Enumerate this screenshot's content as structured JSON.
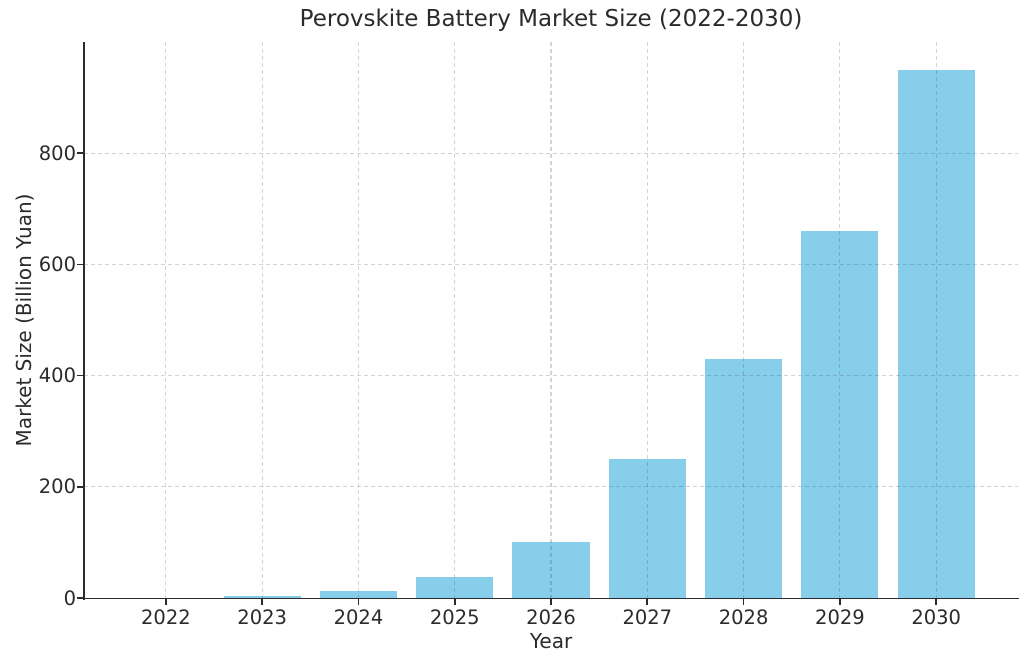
{
  "figure": {
    "background_color": "#ffffff",
    "text_color": "#2b2b2b"
  },
  "chart_data": {
    "type": "bar",
    "title": "Perovskite Battery Market Size (2022-2030)",
    "xlabel": "Year",
    "ylabel": "Market Size (Billion Yuan)",
    "categories": [
      "2022",
      "2023",
      "2024",
      "2025",
      "2026",
      "2027",
      "2028",
      "2029",
      "2030"
    ],
    "values": [
      0.5,
      4,
      12,
      38,
      100,
      250,
      430,
      660,
      950
    ],
    "yticks": [
      0,
      200,
      400,
      600,
      800
    ],
    "ylim": [
      0,
      1000
    ],
    "legend_position": "none",
    "grid": "dashed horizontal and vertical gridlines drawn over bars",
    "spines": "left and bottom only",
    "bar_color": "#87CEEB",
    "axis_color": "#2b2b2b",
    "grid_color": "#cccccc"
  }
}
